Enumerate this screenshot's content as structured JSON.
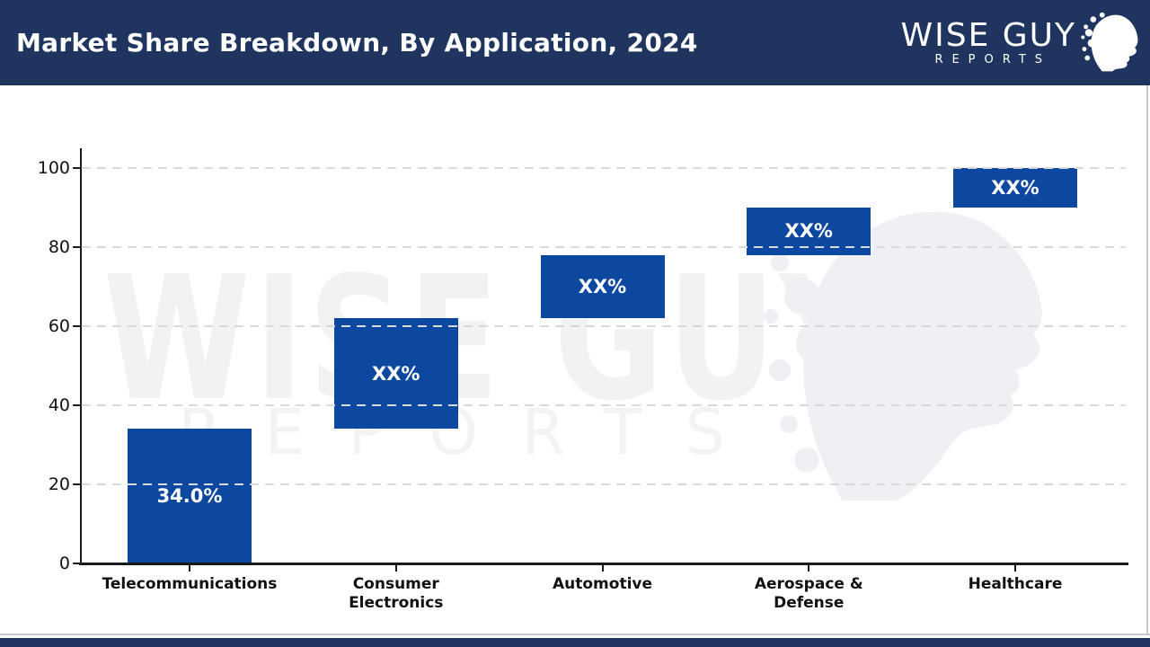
{
  "header": {
    "title": "Market Share Breakdown, By Application, 2024",
    "bg_color": "#1f3560",
    "logo_line1": "WISE GUY",
    "logo_line2": "REPORTS"
  },
  "watermark": {
    "line1": "WISE GUY",
    "line2": "REPORTS"
  },
  "chart_data": {
    "type": "bar",
    "variant": "waterfall",
    "title": "Market Share Breakdown, By Application, 2024",
    "categories": [
      {
        "name": "Telecommunications",
        "lines": [
          "Telecommunications"
        ]
      },
      {
        "name": "Consumer Electronics",
        "lines": [
          "Consumer",
          "Electronics"
        ]
      },
      {
        "name": "Automotive",
        "lines": [
          "Automotive"
        ]
      },
      {
        "name": "Aerospace & Defense",
        "lines": [
          "Aerospace &",
          "Defense"
        ]
      },
      {
        "name": "Healthcare",
        "lines": [
          "Healthcare"
        ]
      }
    ],
    "segments": [
      {
        "category": "Telecommunications",
        "start": 0,
        "end": 34,
        "value_label": "34.0%"
      },
      {
        "category": "Consumer Electronics",
        "start": 34,
        "end": 62,
        "value_label": "XX%"
      },
      {
        "category": "Automotive",
        "start": 62,
        "end": 78,
        "value_label": "XX%"
      },
      {
        "category": "Aerospace & Defense",
        "start": 78,
        "end": 90,
        "value_label": "XX%"
      },
      {
        "category": "Healthcare",
        "start": 90,
        "end": 100,
        "value_label": "XX%"
      }
    ],
    "ylim": [
      0,
      100
    ],
    "yticks": [
      0,
      20,
      40,
      60,
      80,
      100
    ],
    "xlabel": "",
    "ylabel": "",
    "bar_color": "#0d48a0",
    "bar_label_color": "#ffffff",
    "grid": {
      "axis": "y",
      "style": "dashed",
      "color": "#d9d9d9"
    },
    "legend": "none"
  }
}
